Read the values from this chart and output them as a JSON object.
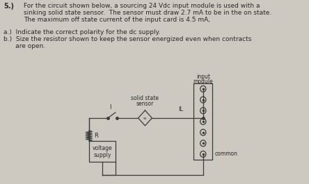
{
  "background_color": "#cdc9c0",
  "text_color": "#2a2a2a",
  "line_color": "#3a3a3a",
  "problem_num": "5.)",
  "title_line1": "For the circuit shown below, a sourcing 24 Vdc input module is used with a",
  "title_line2": "sinking solid state sensor.  The sensor must draw 2.7 mA to be in the on state.",
  "title_line3": "The maximum off state current of the input card is 4.5 mA,",
  "part_a": "a.)  Indicate the correct polarity for the dc supply.",
  "part_b": "b.)  Size the resistor shown to keep the sensor energized even when contracts",
  "part_b2": "      are open.",
  "label_solid_state_1": "solid state",
  "label_solid_state_2": "sensor",
  "label_input_module_1": "input",
  "label_input_module_2": "module",
  "label_voltage_1": "voltage",
  "label_voltage_2": "supply",
  "label_common": "common",
  "label_R": "R",
  "label_I": "I",
  "label_IL": "IL",
  "n_terminals": 7,
  "figsize": [
    4.44,
    2.65
  ],
  "dpi": 100
}
